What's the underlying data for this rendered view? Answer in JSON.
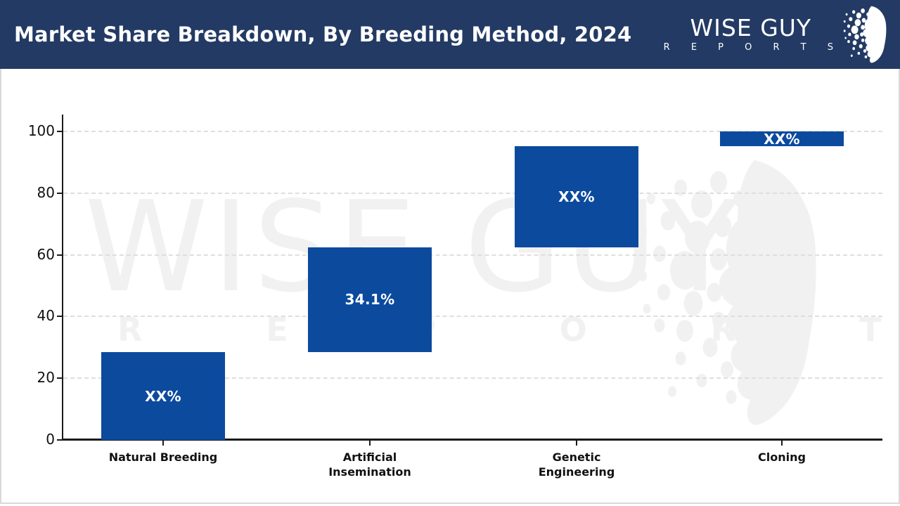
{
  "header": {
    "title": "Market Share Breakdown, By Breeding Method, 2024",
    "bg_color": "#233a64",
    "logo": {
      "wordmark": "WISE GUY",
      "subtext": "R E P O R T S"
    }
  },
  "watermark": {
    "wordmark": "WISE GUY",
    "subtext": "R E P O R T S"
  },
  "chart_data": {
    "type": "bar",
    "subtype": "waterfall",
    "title": "Market Share Breakdown, By Breeding Method, 2024",
    "categories": [
      "Natural Breeding",
      "Artificial Insemination",
      "Genetic Engineering",
      "Cloning"
    ],
    "category_lines": [
      [
        "Natural Breeding"
      ],
      [
        "Artificial",
        "Insemination"
      ],
      [
        "Genetic",
        "Engineering"
      ],
      [
        "Cloning"
      ]
    ],
    "segments": [
      {
        "category": "Natural Breeding",
        "start": 0,
        "end": 28.4,
        "value": 28.4,
        "label": "XX%"
      },
      {
        "category": "Artificial Insemination",
        "start": 28.4,
        "end": 62.5,
        "value": 34.1,
        "label": "34.1%"
      },
      {
        "category": "Genetic Engineering",
        "start": 62.5,
        "end": 95.2,
        "value": 32.7,
        "label": "XX%"
      },
      {
        "category": "Cloning",
        "start": 95.2,
        "end": 100,
        "value": 4.8,
        "label": "XX%"
      }
    ],
    "ylim": [
      0,
      100
    ],
    "yticks": [
      0,
      20,
      40,
      60,
      80,
      100
    ],
    "xlabel": "",
    "ylabel": "",
    "grid": "horizontal-dashed",
    "legend": "none",
    "bar_color": "#0c4a9e",
    "bar_label_color": "#ffffff"
  }
}
